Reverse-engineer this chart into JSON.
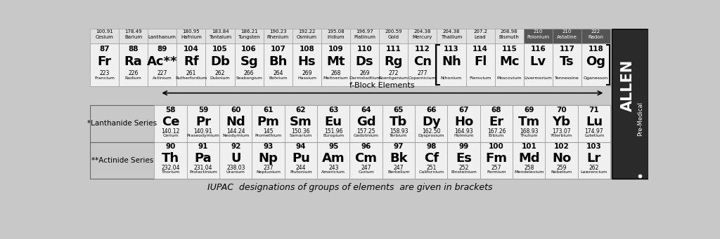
{
  "bg_color": "#c8c8c8",
  "cell_bg": "#e0e0e0",
  "cell_bg_white": "#f0f0f0",
  "cell_border": "#888888",
  "dark_bg": "#555555",
  "title_text": "IUPAC  designations of groups of elements  are given in brackets",
  "fblock_label": "f-Block Elements",
  "lanthanide_label": "*Lanthanide Series",
  "actinide_label": "**Actinide Series",
  "row6_data": [
    {
      "mass": "100.91",
      "name": "Cesium"
    },
    {
      "mass": "178.49",
      "name": "Barium"
    },
    {
      "mass": "",
      "name": "Lanthanum"
    },
    {
      "mass": "180.95",
      "name": "Hafnium"
    },
    {
      "mass": "183.84",
      "name": "Tantalum"
    },
    {
      "mass": "186.21",
      "name": "Tungsten"
    },
    {
      "mass": "190.23",
      "name": "Rhenium"
    },
    {
      "mass": "192.22",
      "name": "Osmium"
    },
    {
      "mass": "195.08",
      "name": "Iridium"
    },
    {
      "mass": "196.97",
      "name": "Platinum"
    },
    {
      "mass": "200.59",
      "name": "Gold"
    },
    {
      "mass": "204.38",
      "name": "Mercury"
    },
    {
      "mass": "204.38",
      "name": "Thallium"
    },
    {
      "mass": "207.2",
      "name": "Lead"
    },
    {
      "mass": "208.98",
      "name": "Bismuth"
    },
    {
      "mass": "210",
      "name": "Polonium",
      "dark": true
    },
    {
      "mass": "210",
      "name": "Astatine",
      "dark": true
    },
    {
      "mass": "222",
      "name": "Radon",
      "dark": true
    }
  ],
  "row7_elements": [
    {
      "num": "87",
      "sym": "Fr",
      "mass": "223",
      "name": "Francium"
    },
    {
      "num": "88",
      "sym": "Ra",
      "mass": "226",
      "name": "Radium"
    },
    {
      "num": "89",
      "sym": "Ac**",
      "mass": "227",
      "name": "Actinium"
    },
    {
      "num": "104",
      "sym": "Rf",
      "mass": "261",
      "name": "Rutherfordium"
    },
    {
      "num": "105",
      "sym": "Db",
      "mass": "262",
      "name": "Dubnium"
    },
    {
      "num": "106",
      "sym": "Sg",
      "mass": "266",
      "name": "Seaborgium"
    },
    {
      "num": "107",
      "sym": "Bh",
      "mass": "264",
      "name": "Bohrium"
    },
    {
      "num": "108",
      "sym": "Hs",
      "mass": "269",
      "name": "Hassium"
    },
    {
      "num": "109",
      "sym": "Mt",
      "mass": "268",
      "name": "Meitnerium"
    },
    {
      "num": "110",
      "sym": "Ds",
      "mass": "269",
      "name": "Darmstadtium"
    },
    {
      "num": "111",
      "sym": "Rg",
      "mass": "272",
      "name": "Roentgenium"
    },
    {
      "num": "112",
      "sym": "Cn",
      "mass": "277",
      "name": "Copernicium"
    },
    {
      "num": "113",
      "sym": "Nh",
      "mass": "",
      "name": "Nihonium"
    },
    {
      "num": "114",
      "sym": "Fl",
      "mass": "",
      "name": "Flerovium"
    },
    {
      "num": "115",
      "sym": "Mc",
      "mass": "",
      "name": "Moscovium"
    },
    {
      "num": "116",
      "sym": "Lv",
      "mass": "",
      "name": "Livermorium"
    },
    {
      "num": "117",
      "sym": "Ts",
      "mass": "",
      "name": "Tennessine"
    },
    {
      "num": "118",
      "sym": "Og",
      "mass": "",
      "name": "Oganesson"
    }
  ],
  "lanthanides": [
    {
      "num": "58",
      "sym": "Ce",
      "mass": "140.12",
      "name": "Cerium"
    },
    {
      "num": "59",
      "sym": "Pr",
      "mass": "140.91",
      "name": "Praseodymium"
    },
    {
      "num": "60",
      "sym": "Nd",
      "mass": "144.24",
      "name": "Neodymium"
    },
    {
      "num": "61",
      "sym": "Pm",
      "mass": "145",
      "name": "Promethium"
    },
    {
      "num": "62",
      "sym": "Sm",
      "mass": "150.36",
      "name": "Samarium"
    },
    {
      "num": "63",
      "sym": "Eu",
      "mass": "151.96",
      "name": "Europium"
    },
    {
      "num": "64",
      "sym": "Gd",
      "mass": "157.25",
      "name": "Gadolinium"
    },
    {
      "num": "65",
      "sym": "Tb",
      "mass": "158.93",
      "name": "Terbium"
    },
    {
      "num": "66",
      "sym": "Dy",
      "mass": "162.50",
      "name": "Dysprosium"
    },
    {
      "num": "67",
      "sym": "Ho",
      "mass": "164.93",
      "name": "Holmium"
    },
    {
      "num": "68",
      "sym": "Er",
      "mass": "167.26",
      "name": "Erbium"
    },
    {
      "num": "69",
      "sym": "Tm",
      "mass": "168.93",
      "name": "Thulium"
    },
    {
      "num": "70",
      "sym": "Yb",
      "mass": "173.07",
      "name": "Ytterbium"
    },
    {
      "num": "71",
      "sym": "Lu",
      "mass": "174.97",
      "name": "Lutetium"
    }
  ],
  "actinides": [
    {
      "num": "90",
      "sym": "Th",
      "mass": "232.04",
      "name": "Thorium"
    },
    {
      "num": "91",
      "sym": "Pa",
      "mass": "231.04",
      "name": "Protactinium"
    },
    {
      "num": "92",
      "sym": "U",
      "mass": "238.03",
      "name": "Uranium"
    },
    {
      "num": "93",
      "sym": "Np",
      "mass": "237",
      "name": "Neptunium"
    },
    {
      "num": "94",
      "sym": "Pu",
      "mass": "244",
      "name": "Plutonium"
    },
    {
      "num": "95",
      "sym": "Am",
      "mass": "243",
      "name": "Americium"
    },
    {
      "num": "96",
      "sym": "Cm",
      "mass": "247",
      "name": "Curium"
    },
    {
      "num": "97",
      "sym": "Bk",
      "mass": "247",
      "name": "Berkelium"
    },
    {
      "num": "98",
      "sym": "Cf",
      "mass": "251",
      "name": "Californium"
    },
    {
      "num": "99",
      "sym": "Es",
      "mass": "252",
      "name": "Einsteinium"
    },
    {
      "num": "100",
      "sym": "Fm",
      "mass": "257",
      "name": "Fermium"
    },
    {
      "num": "101",
      "sym": "Md",
      "mass": "258",
      "name": "Mendelevium"
    },
    {
      "num": "102",
      "sym": "No",
      "mass": "259",
      "name": "Nobelium"
    },
    {
      "num": "103",
      "sym": "Lr",
      "mass": "262",
      "name": "Lawrencium"
    }
  ]
}
